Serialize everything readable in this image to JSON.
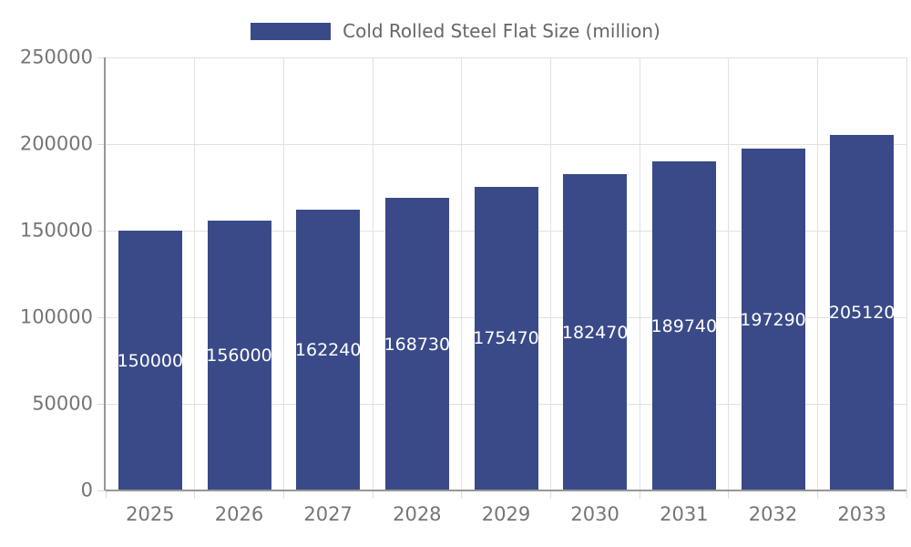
{
  "legend": {
    "label": "Cold Rolled Steel Flat Size (million)"
  },
  "colors": {
    "bar": "#3A4A88",
    "axis_line": "#979797",
    "grid_line": "#E2E2E2",
    "tick_mark": "#DCDCDC",
    "axis_label": "#757575",
    "legend_text": "#666666",
    "bar_label": "#FFFFFF",
    "background": "#FFFFFF"
  },
  "chart_data": {
    "type": "bar",
    "title": "",
    "categories": [
      "2025",
      "2026",
      "2027",
      "2028",
      "2029",
      "2030",
      "2031",
      "2032",
      "2033"
    ],
    "series": [
      {
        "name": "Cold Rolled Steel Flat Size (million)",
        "values": [
          150000,
          156000,
          162240,
          168730,
          175470,
          182470,
          189740,
          197290,
          205120
        ]
      }
    ],
    "bar_labels": [
      "150000",
      "156000",
      "162240",
      "168730",
      "175470",
      "182470",
      "189740",
      "197290",
      "205120"
    ],
    "xlabel": "",
    "ylabel": "",
    "ylim": [
      0,
      250000
    ],
    "yticks": [
      0,
      50000,
      100000,
      150000,
      200000,
      250000
    ],
    "ytick_labels": [
      "0",
      "50000",
      "100000",
      "150000",
      "200000",
      "250000"
    ],
    "grid": true,
    "legend_position": "top-center",
    "bar_label_position": "inside-middle"
  }
}
